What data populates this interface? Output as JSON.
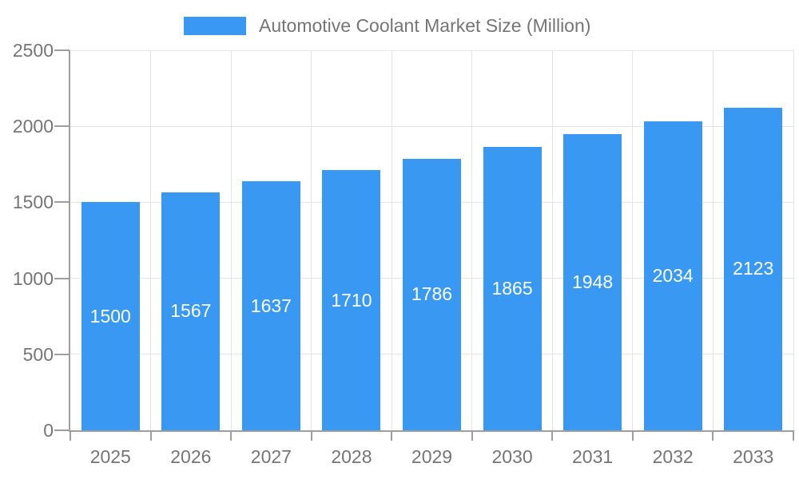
{
  "legend": {
    "label": "Automotive Coolant Market Size (Million)"
  },
  "colors": {
    "bar": "#3999F2",
    "axis_line": "#9e9e9e",
    "grid_line": "#e4e4e4",
    "text": "#757575",
    "bar_label": "#ffffff",
    "background": "#ffffff"
  },
  "chart_data": {
    "type": "bar",
    "categories": [
      "2025",
      "2026",
      "2027",
      "2028",
      "2029",
      "2030",
      "2031",
      "2032",
      "2033"
    ],
    "values": [
      1500,
      1567,
      1637,
      1710,
      1786,
      1865,
      1948,
      2034,
      2123
    ],
    "title": "Automotive Coolant Market Size (Million)",
    "xlabel": "",
    "ylabel": "",
    "ylim": [
      0,
      2500
    ],
    "yticks": [
      0,
      500,
      1000,
      1500,
      2000,
      2500
    ],
    "grid": true,
    "legend_position": "top",
    "bar_labels": "inside-center"
  }
}
